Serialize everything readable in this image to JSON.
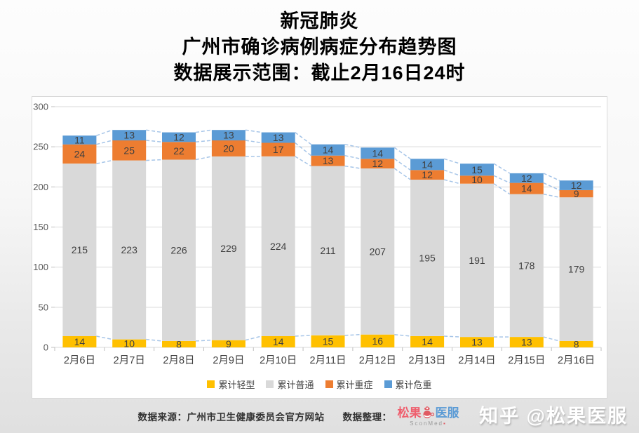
{
  "title": {
    "line1": "新冠肺炎",
    "line2": "广州市确诊病例病症分布趋势图",
    "line3": "数据展示范围：截止2月16日24时"
  },
  "chart_data": {
    "type": "bar",
    "stacked": true,
    "categories": [
      "2月6日",
      "2月7日",
      "2月8日",
      "2月9日",
      "2月10日",
      "2月11日",
      "2月12日",
      "2月13日",
      "2月14日",
      "2月15日",
      "2月16日"
    ],
    "series": [
      {
        "name": "累计轻型",
        "color": "#FFC000",
        "values": [
          14,
          10,
          8,
          9,
          14,
          15,
          16,
          14,
          13,
          13,
          8
        ]
      },
      {
        "name": "累计普通",
        "color": "#D9D9D9",
        "values": [
          215,
          223,
          226,
          229,
          224,
          211,
          207,
          195,
          191,
          178,
          179
        ]
      },
      {
        "name": "累计重症",
        "color": "#ED7D31",
        "values": [
          24,
          25,
          22,
          20,
          17,
          13,
          12,
          12,
          10,
          14,
          9
        ]
      },
      {
        "name": "累计危重",
        "color": "#5B9BD5",
        "values": [
          11,
          13,
          12,
          13,
          13,
          14,
          14,
          14,
          15,
          12,
          12
        ]
      }
    ],
    "ylim": [
      0,
      300
    ],
    "yticks": [
      0,
      50,
      100,
      150,
      200,
      250,
      300
    ],
    "ytick_interval": 50,
    "grid": true,
    "legend_position": "bottom",
    "series_line_color": "#A6C5E8",
    "grid_color": "#d9d9d9",
    "tick_color": "#bfbfbf",
    "label_color": "#404040",
    "axis_text_color": "#595959",
    "xlabel": "",
    "ylabel": ""
  },
  "footer": {
    "source_label": "数据来源：广州市卫生健康委员会官方网站",
    "editor_label": "数据整理：",
    "logo": {
      "part1": "松果",
      "part2": "医服",
      "subtext": "SconMed",
      "brand_red": "#ef5f6e",
      "brand_blue": "#5b9bd5"
    },
    "watermark": "知乎 @松果医服"
  }
}
